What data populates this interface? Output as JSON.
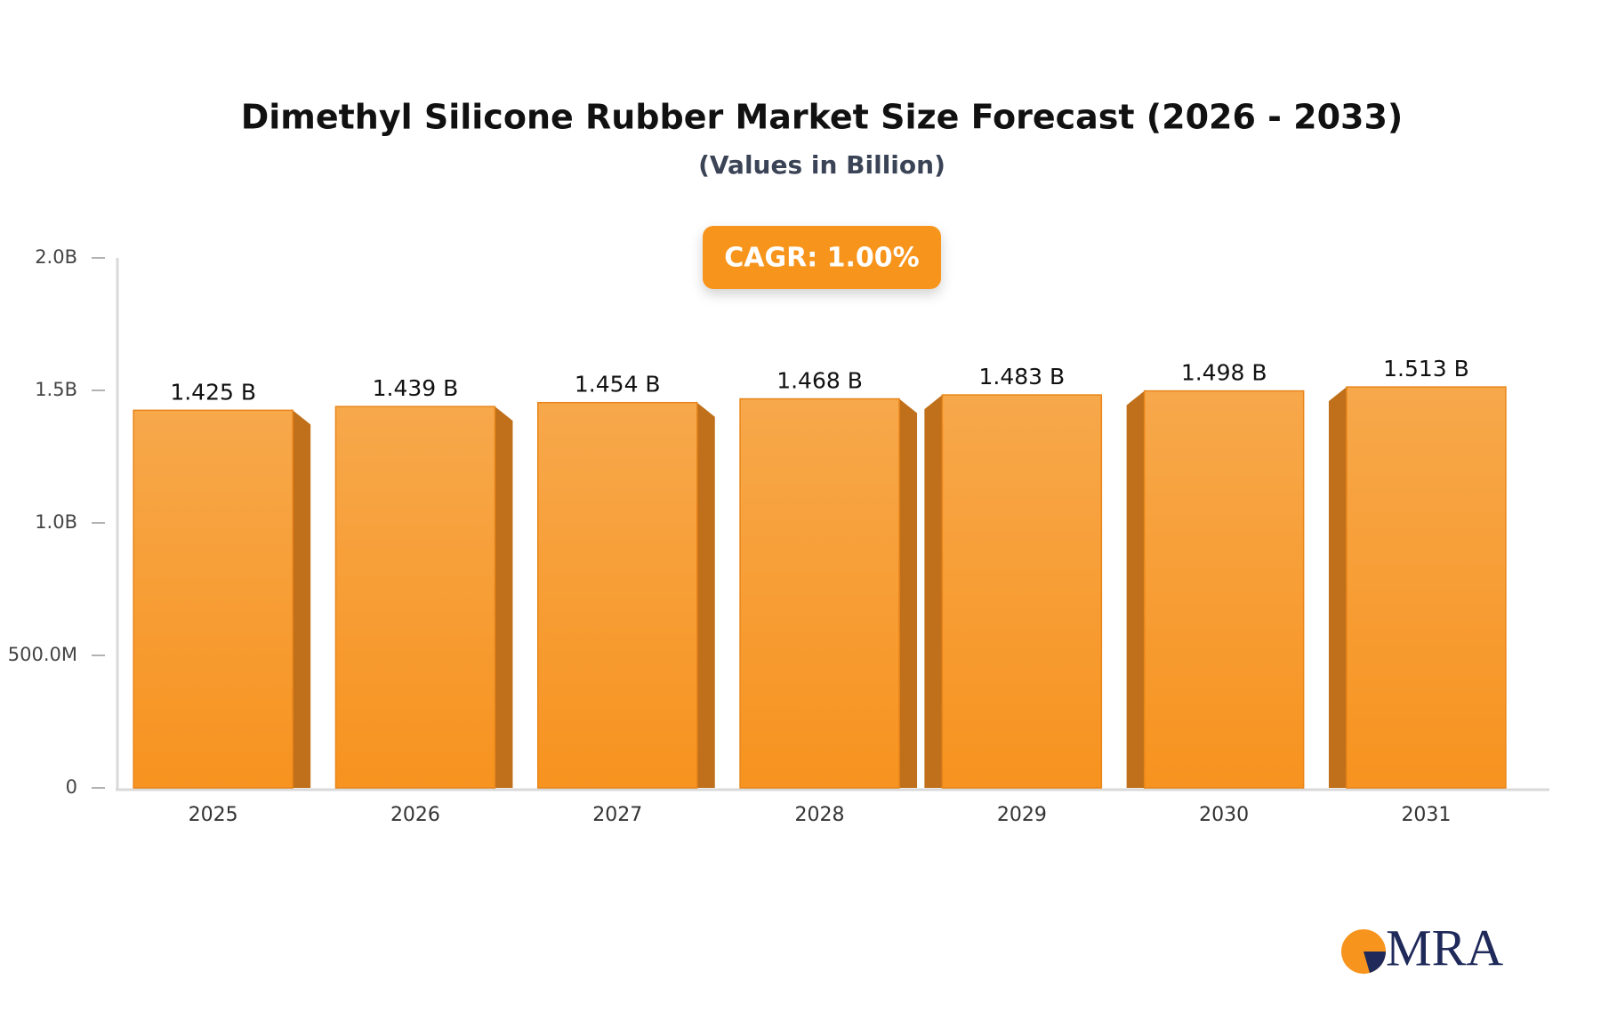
{
  "chart_data": {
    "type": "bar",
    "title": "Dimethyl Silicone Rubber Market Size Forecast (2026 - 2033)",
    "subtitle": "(Values in Billion)",
    "annotation": "CAGR: 1.00%",
    "watermark": "MRA",
    "categories": [
      "2025",
      "2026",
      "2027",
      "2028",
      "2029",
      "2030",
      "2031"
    ],
    "values": [
      1.425,
      1.439,
      1.454,
      1.468,
      1.483,
      1.498,
      1.513
    ],
    "value_labels": [
      "1.425 B",
      "1.439 B",
      "1.454 B",
      "1.468 B",
      "1.483 B",
      "1.498 B",
      "1.513 B"
    ],
    "color": "#f7941d",
    "ylim": [
      0,
      2
    ],
    "yticks": [
      0,
      {
        "value": 0.5,
        "label": "500.0M"
      },
      {
        "value": 1,
        "label": "1.0B"
      },
      {
        "value": 1.5,
        "label": "1.5B"
      },
      {
        "value": 2,
        "label": "2.0B"
      }
    ],
    "grid": false
  }
}
